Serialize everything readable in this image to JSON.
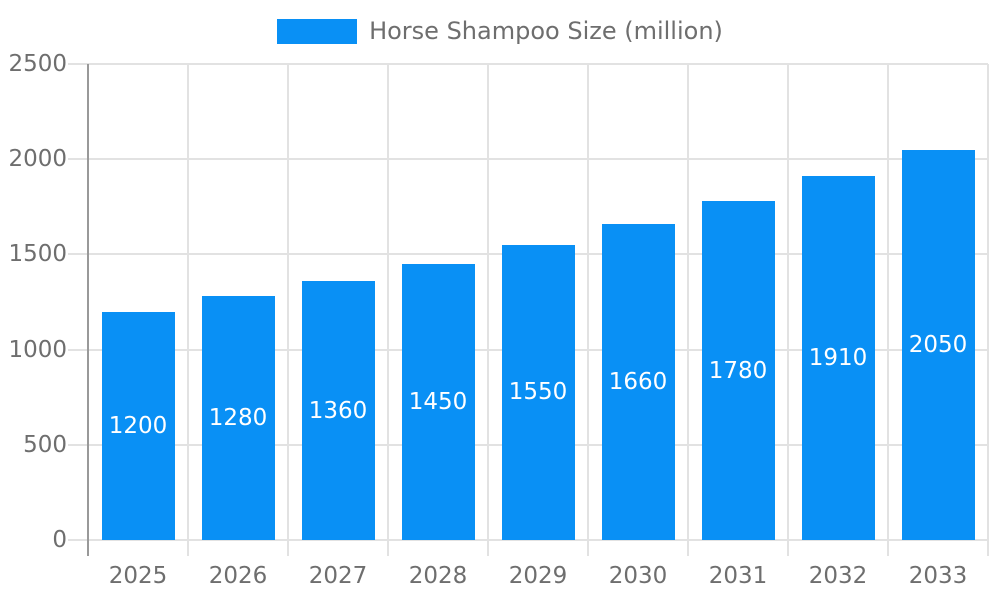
{
  "colors": {
    "bar": "#0990f5",
    "grid": "#e2e2e2",
    "axis": "#999999",
    "text": "#6e6e6e",
    "value_label": "#ffffff",
    "background": "#ffffff"
  },
  "chart_data": {
    "type": "bar",
    "title": "",
    "categories": [
      "2025",
      "2026",
      "2027",
      "2028",
      "2029",
      "2030",
      "2031",
      "2032",
      "2033"
    ],
    "series": [
      {
        "name": "Horse Shampoo Size (million)",
        "values": [
          1200,
          1280,
          1360,
          1450,
          1550,
          1660,
          1780,
          1910,
          2050
        ]
      }
    ],
    "value_labels": [
      1200,
      1280,
      1360,
      1450,
      1550,
      1660,
      1780,
      1910,
      2050
    ],
    "xlabel": "",
    "ylabel": "",
    "ylim": [
      0,
      2500
    ],
    "yticks": [
      0,
      500,
      1000,
      1500,
      2000,
      2500
    ],
    "grid": true,
    "legend_position": "top-center",
    "value_label_position": "inside-center"
  }
}
